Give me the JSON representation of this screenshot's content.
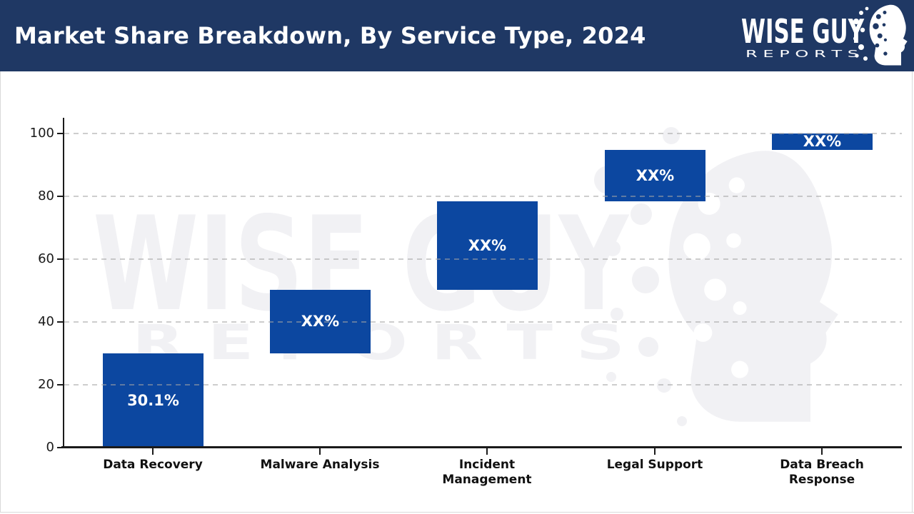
{
  "header": {
    "title": "Market Share Breakdown, By Service Type, 2024",
    "brand": {
      "name": "WISE GUY",
      "sub": "R E P O R T S"
    }
  },
  "watermark": {
    "name": "WISE GUY",
    "sub": "R E P O R T S"
  },
  "colors": {
    "header_bg": "#1f3864",
    "bar": "#0c47a0",
    "bar_label": "#ffffff",
    "axis": "#1a1a1a",
    "gridline": "#d9d9d9",
    "watermark": "#f1f1f4"
  },
  "chart_data": {
    "type": "bar",
    "subtype": "waterfall-stacked-breakdown",
    "title": "Market Share Breakdown, By Service Type, 2024",
    "categories": [
      "Data Recovery",
      "Malware Analysis",
      "Incident Management",
      "Legal Support",
      "Data Breach Response"
    ],
    "x_tick_labels": [
      "Data Recovery",
      "Malware Analysis",
      "Incident\nManagement",
      "Legal Support",
      "Data Breach\nResponse"
    ],
    "segments": [
      {
        "category": "Data Recovery",
        "start": 0,
        "end": 30.1,
        "value": 30.1,
        "label": "30.1%"
      },
      {
        "category": "Malware Analysis",
        "start": 30.1,
        "end": 50.2,
        "value": 20.1,
        "label": "XX%"
      },
      {
        "category": "Incident Management",
        "start": 50.2,
        "end": 78.5,
        "value": 28.3,
        "label": "XX%"
      },
      {
        "category": "Legal Support",
        "start": 78.5,
        "end": 94.8,
        "value": 16.3,
        "label": "XX%"
      },
      {
        "category": "Data Breach Response",
        "start": 94.8,
        "end": 100,
        "value": 5.2,
        "label": "XX%"
      }
    ],
    "xlabel": "",
    "ylabel": "",
    "yticks": [
      0,
      20,
      40,
      60,
      80,
      100
    ],
    "ylim": [
      0,
      100
    ],
    "grid": "horizontal-dashed",
    "legend": "none",
    "bar_color": "#0c47a0"
  }
}
